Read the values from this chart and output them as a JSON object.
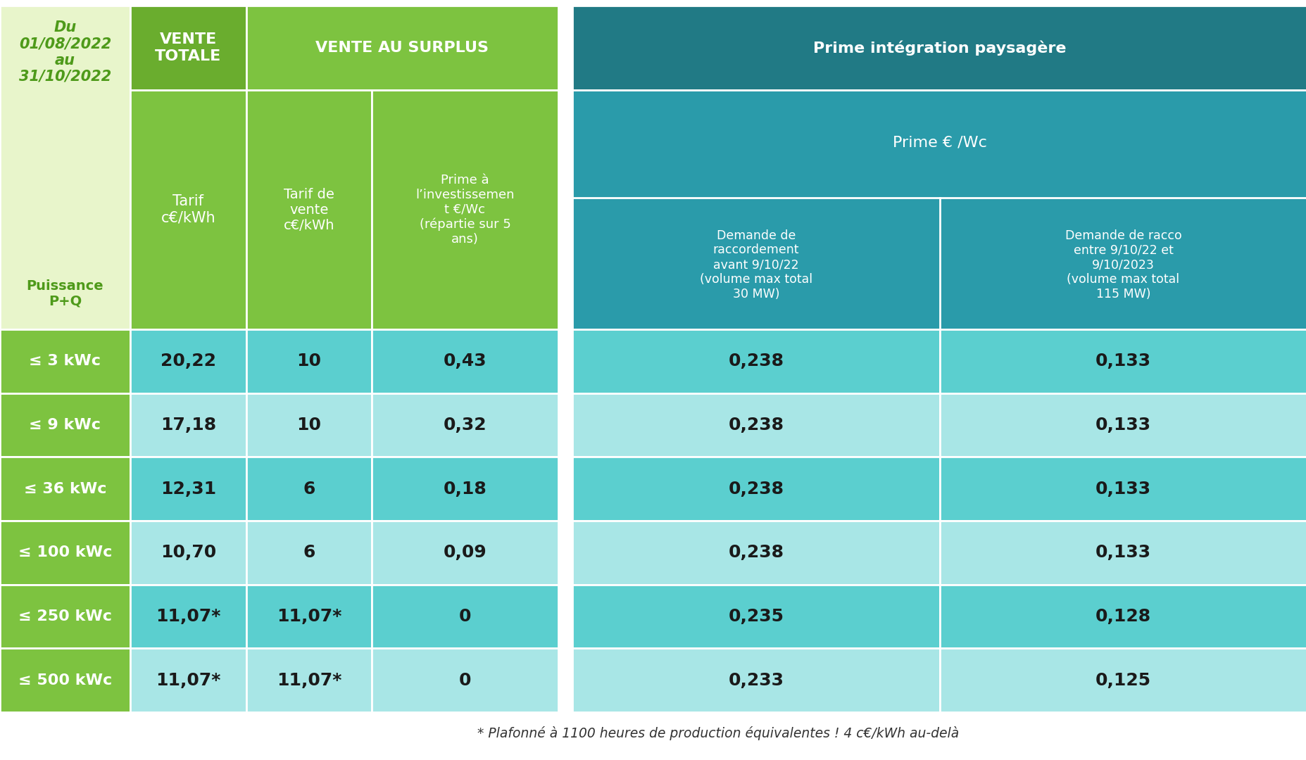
{
  "title_left_text": "Du\n01/08/2022\nau\n31/10/2022",
  "col1_header": "VENTE\nTOTALE",
  "col23_header": "VENTE AU SURPLUS",
  "col45_header": "Prime intégration paysagère",
  "col1_sub": "Tarif\nc€/kWh",
  "col2_sub": "Tarif de\nvente\nc€/kWh",
  "col3_sub": "Prime à\nl’investissemen\nt €/Wc\n(répartie sur 5\nans)",
  "col45_sub": "Prime € /Wc",
  "col4_sub": "Demande de\nraccordement\navant 9/10/22\n(volume max total\n30 MW)",
  "col5_sub": "Demande de racco\nentre 9/10/22 et\n9/10/2023\n(volume max total\n115 MW)",
  "row_header": "Puissance\nP+Q",
  "row_labels": [
    "≤ 3 kWc",
    "≤ 9 kWc",
    "≤ 36 kWc",
    "≤ 100 kWc",
    "≤ 250 kWc",
    "≤ 500 kWc"
  ],
  "col1_values": [
    "20,22",
    "17,18",
    "12,31",
    "10,70",
    "11,07*",
    "11,07*"
  ],
  "col2_values": [
    "10",
    "10",
    "6",
    "6",
    "11,07*",
    "11,07*"
  ],
  "col3_values": [
    "0,43",
    "0,32",
    "0,18",
    "0,09",
    "0",
    "0"
  ],
  "col4_values": [
    "0,238",
    "0,238",
    "0,238",
    "0,238",
    "0,235",
    "0,233"
  ],
  "col5_values": [
    "0,133",
    "0,133",
    "0,133",
    "0,133",
    "0,128",
    "0,125"
  ],
  "footnote": "* Plafonné à 1100 heures de production équivalentes ! 4 c€/kWh au-delà",
  "color_header_green_dark": "#6AAD2E",
  "color_header_green_bright": "#7DC340",
  "color_header_teal_dark": "#217A85",
  "color_header_teal_mid": "#2A9BAA",
  "color_row_label_green": "#7DC340",
  "color_light_green_bg": "#D4EDAA",
  "color_lighter_green_bg": "#E8F5CB",
  "color_cyan_bright": "#5BCFCF",
  "color_cyan_light": "#A8E6E6",
  "color_cyan_mid": "#7DD8D8",
  "color_white": "#FFFFFF",
  "color_green_text": "#4E9A1A",
  "color_dark_text": "#1A1A1A",
  "bg_color": "#FFFFFF"
}
